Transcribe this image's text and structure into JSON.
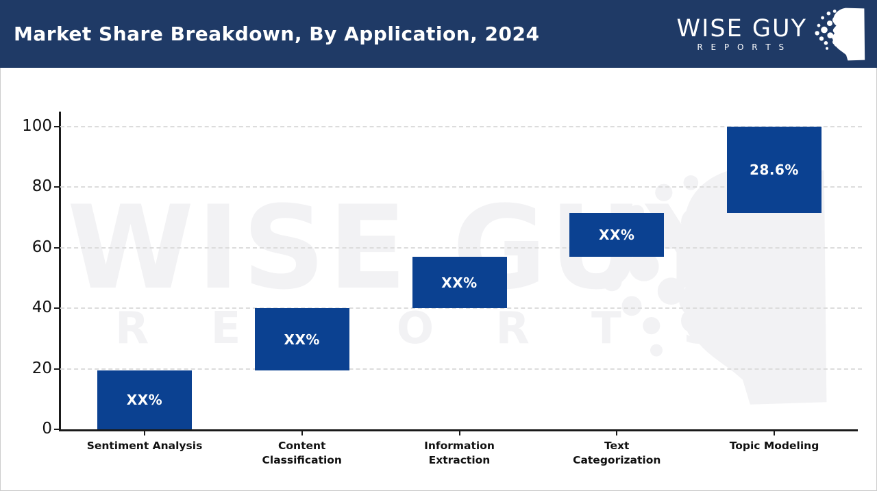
{
  "header": {
    "title": "Market Share Breakdown, By Application, 2024",
    "logo": {
      "line1": "WISE GUY",
      "line2": "R E P O R T S"
    }
  },
  "watermark": {
    "line1": "WISE GUY",
    "line2": "R E P O R T S"
  },
  "colors": {
    "header_bg": "#1f3a66",
    "bar_fill": "#0b4191",
    "bar_label_text": "#ffffff",
    "grid_line": "#dcdcdc",
    "axis_line": "#1a1a1a",
    "tick_label_text": "#111111",
    "watermark": "#f2f2f4",
    "canvas_border": "#cccccc"
  },
  "chart_data": {
    "type": "bar",
    "subtype": "waterfall",
    "title": "Market Share Breakdown, By Application, 2024",
    "categories": [
      "Sentiment Analysis",
      "Content\nClassification",
      "Information\nExtraction",
      "Text\nCategorization",
      "Topic Modeling"
    ],
    "bars": [
      {
        "category": "Sentiment Analysis",
        "start": 0,
        "end": 19.4,
        "value_label": "XX%"
      },
      {
        "category": "Content Classification",
        "start": 19.4,
        "end": 40,
        "value_label": "XX%"
      },
      {
        "category": "Information Extraction",
        "start": 40,
        "end": 57,
        "value_label": "XX%"
      },
      {
        "category": "Text Categorization",
        "start": 57,
        "end": 71.4,
        "value_label": "XX%"
      },
      {
        "category": "Topic Modeling",
        "start": 71.4,
        "end": 100,
        "value_label": "28.6%"
      }
    ],
    "yticks": [
      0,
      20,
      40,
      60,
      80,
      100
    ],
    "ylim": [
      0,
      108
    ],
    "xlabel": "",
    "ylabel": "",
    "legend": "none",
    "grid": "horizontal-dashed"
  }
}
